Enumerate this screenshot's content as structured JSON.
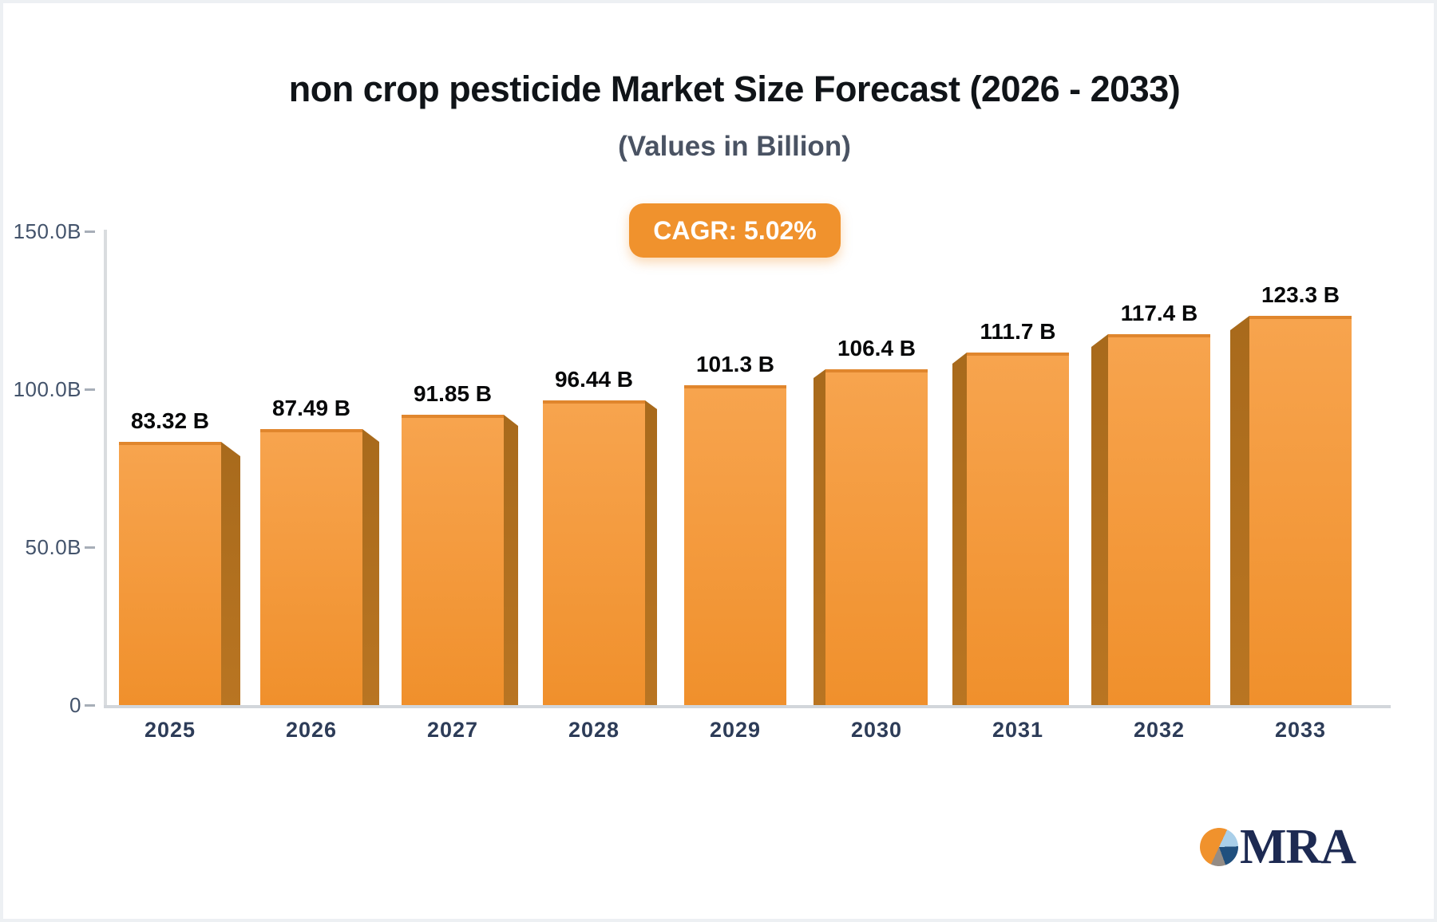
{
  "title": "non crop pesticide Market Size Forecast (2026 - 2033)",
  "subtitle": "(Values in Billion)",
  "badge": {
    "label": "CAGR: 5.02%",
    "bg_color": "#F0922D",
    "text_color": "#FFFFFF"
  },
  "logo": {
    "text": "MRA",
    "pie_colors": {
      "orange": "#F0922D",
      "light_blue": "#A9CFE9",
      "navy": "#20507E",
      "gray": "#948C85"
    }
  },
  "chart_data": {
    "type": "bar",
    "title": "non crop pesticide Market Size Forecast (2026 - 2033)",
    "subtitle": "(Values in Billion)",
    "categories": [
      "2025",
      "2026",
      "2027",
      "2028",
      "2029",
      "2030",
      "2031",
      "2032",
      "2033"
    ],
    "values": [
      83.32,
      87.49,
      91.85,
      96.44,
      101.3,
      106.4,
      111.7,
      117.4,
      123.3
    ],
    "value_labels": [
      "83.32 B",
      "87.49 B",
      "91.85 B",
      "96.44 B",
      "101.3 B",
      "106.4 B",
      "111.7 B",
      "117.4 B",
      "123.3 B"
    ],
    "y_ticks": [
      {
        "value": 0,
        "label": "0"
      },
      {
        "value": 50,
        "label": "50.0B"
      },
      {
        "value": 100,
        "label": "100.0B"
      },
      {
        "value": 150,
        "label": "150.0B"
      }
    ],
    "ylim": [
      0,
      150
    ],
    "xlabel": "",
    "ylabel": "",
    "grid": false,
    "legend": false,
    "bar_style": "3d-perspective",
    "bar_color_top": "#F7A44E",
    "bar_color_bottom": "#F0902C",
    "bar_side_color": "#B06E1E",
    "annotation": "CAGR: 5.02%"
  }
}
